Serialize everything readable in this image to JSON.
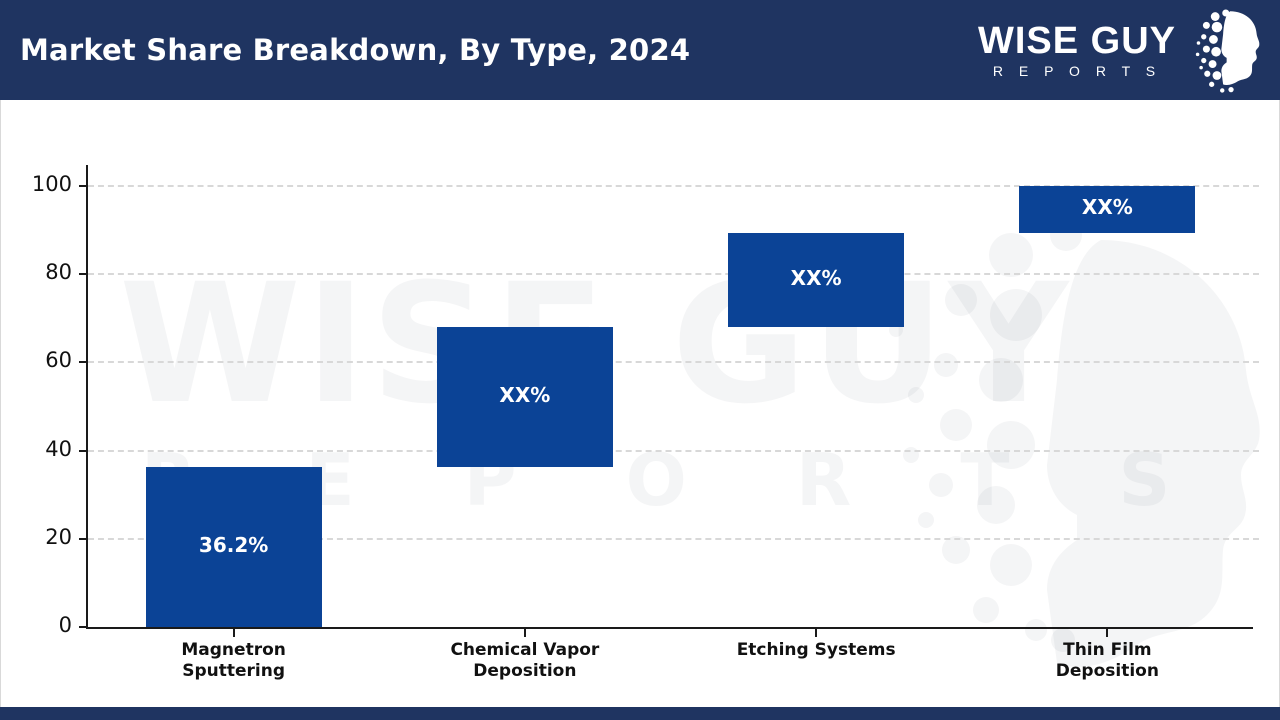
{
  "header": {
    "title": "Market Share Breakdown, By Type, 2024",
    "logo": {
      "wordmark": "WISE GUY",
      "subtext": "R E P O R T S"
    }
  },
  "watermark": {
    "wordmark": "WISE GUY",
    "subtext": "R E P O R T S"
  },
  "chart_data": {
    "type": "bar",
    "subtype": "waterfall",
    "title": "Market Share Breakdown, By Type, 2024",
    "categories": [
      "Magnetron Sputtering",
      "Chemical Vapor Deposition",
      "Etching Systems",
      "Thin Film Deposition"
    ],
    "category_label_lines": [
      [
        "Magnetron",
        "Sputtering"
      ],
      [
        "Chemical Vapor",
        "Deposition"
      ],
      [
        "Etching Systems"
      ],
      [
        "Thin Film",
        "Deposition"
      ]
    ],
    "segments": [
      {
        "category": "Magnetron Sputtering",
        "start": 0,
        "end": 36.2,
        "label": "36.2%"
      },
      {
        "category": "Chemical Vapor Deposition",
        "start": 36.2,
        "end": 68,
        "label": "XX%"
      },
      {
        "category": "Etching Systems",
        "start": 68,
        "end": 89.4,
        "label": "XX%"
      },
      {
        "category": "Thin Film Deposition",
        "start": 89.4,
        "end": 100,
        "label": "XX%"
      }
    ],
    "ylim": [
      0,
      100
    ],
    "yticks": [
      0,
      20,
      40,
      60,
      80,
      100
    ],
    "xlabel": "",
    "ylabel": "",
    "grid": "horizontal-dashed",
    "legend": "none",
    "colors": {
      "bar": "#0B4396",
      "bar_label": "#FFFFFF",
      "axis": "#1A1A1A",
      "grid": "#D8D8D8",
      "header_bg": "#1F3461",
      "tick_text": "#111111"
    }
  }
}
